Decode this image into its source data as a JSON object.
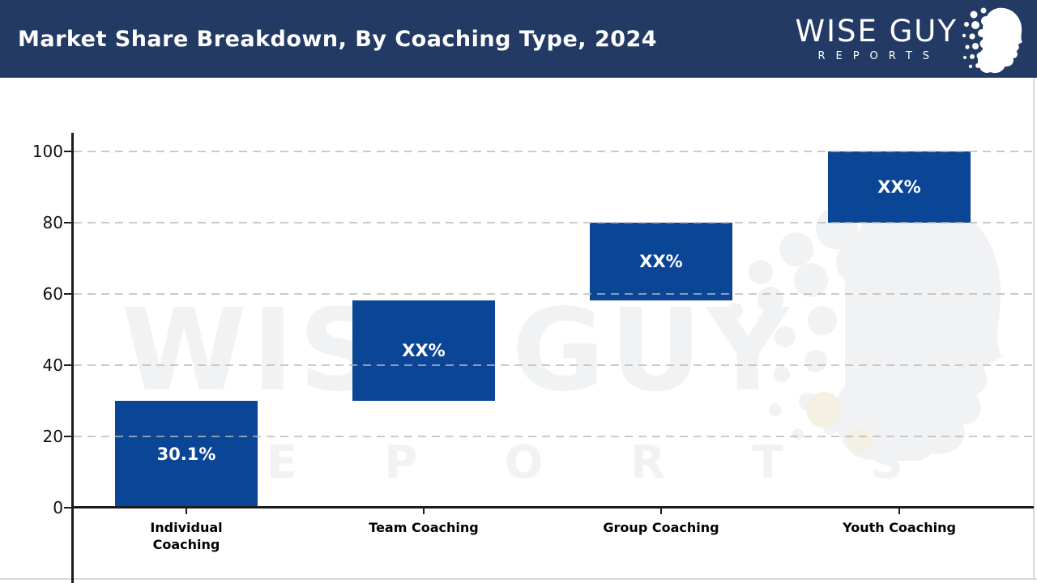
{
  "header": {
    "title": "Market Share Breakdown, By Coaching Type, 2024",
    "brand_line1": "WISE GUY",
    "brand_line2": "REPORTS"
  },
  "watermark": {
    "line1": "WISE GUY",
    "line2": "REPORTS"
  },
  "colors": {
    "header_bg": "#223a64",
    "bar": "#0b4596",
    "axis": "#1c1c1c",
    "gridline": "#bcbcbc",
    "value_label": "#ffffff",
    "watermark": "#f1f2f4",
    "watermark_warm": "#f4f0e4",
    "frame_border": "#d8d8d8"
  },
  "chart_data": {
    "type": "waterfall",
    "title": "Market Share Breakdown, By Coaching Type, 2024",
    "categories": [
      "Individual Coaching",
      "Team Coaching",
      "Group Coaching",
      "Youth Coaching"
    ],
    "segments": [
      {
        "category": "Individual Coaching",
        "display": "Individual\nCoaching",
        "start": 0,
        "end": 30.1,
        "label": "30.1%"
      },
      {
        "category": "Team Coaching",
        "display": "Team Coaching",
        "start": 30.1,
        "end": 58.2,
        "label": "XX%"
      },
      {
        "category": "Group Coaching",
        "display": "Group Coaching",
        "start": 58.2,
        "end": 80,
        "label": "XX%"
      },
      {
        "category": "Youth Coaching",
        "display": "Youth Coaching",
        "start": 80,
        "end": 100,
        "label": "XX%"
      }
    ],
    "yticks": [
      0,
      20,
      40,
      60,
      80,
      100
    ],
    "ylim": [
      0,
      100
    ],
    "xlabel": "",
    "ylabel": "",
    "grid": "horizontal dashed, drawn over bars",
    "legend": "none",
    "bar_color": "#0b4596",
    "value_labels_inside_bars": true
  }
}
